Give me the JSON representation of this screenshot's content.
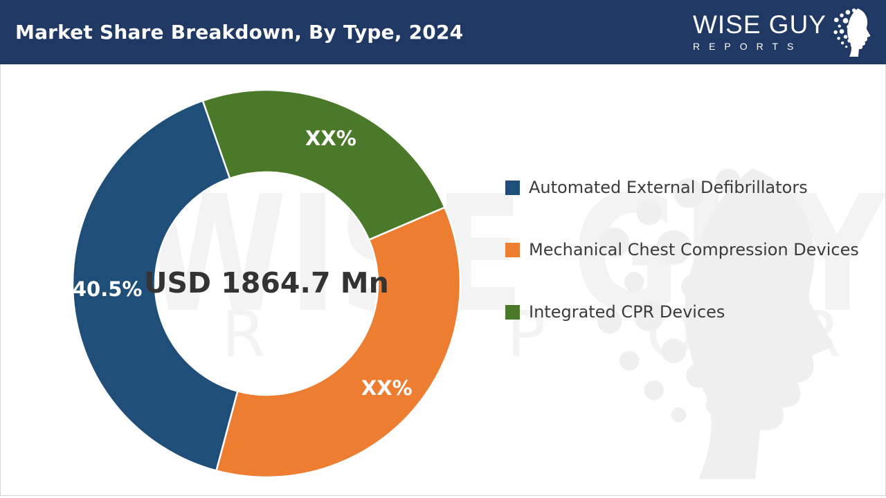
{
  "header": {
    "title": "Market Share Breakdown, By Type, 2024",
    "brand": {
      "line1": "WISE GUY",
      "line2": "REPORTS"
    }
  },
  "watermark": {
    "line1": "WISE GUY",
    "line2": "R E P O R T S"
  },
  "chart_data": {
    "type": "pie",
    "subtype": "donut",
    "title": "Market Share Breakdown, By Type, 2024",
    "center_label": "USD 1864.7 Mn",
    "legend_position": "right",
    "start_angle_deg_clockwise_from_top": 195,
    "draw_order": [
      0,
      2,
      1
    ],
    "segments": [
      {
        "label": "Automated External Defibrillators",
        "value_pct": 40.5,
        "display_value": "40.5%",
        "color": "#1f4e78"
      },
      {
        "label": "Mechanical Chest Compression Devices",
        "value_pct": 35.6,
        "display_value": "XX%",
        "color": "#ed7d31"
      },
      {
        "label": "Integrated CPR Devices",
        "value_pct": 23.9,
        "display_value": "XX%",
        "color": "#4a7a29"
      }
    ],
    "colors": {
      "header_bar": "#203864",
      "center_text": "#333333",
      "segment_separator": "#ffffff"
    }
  }
}
